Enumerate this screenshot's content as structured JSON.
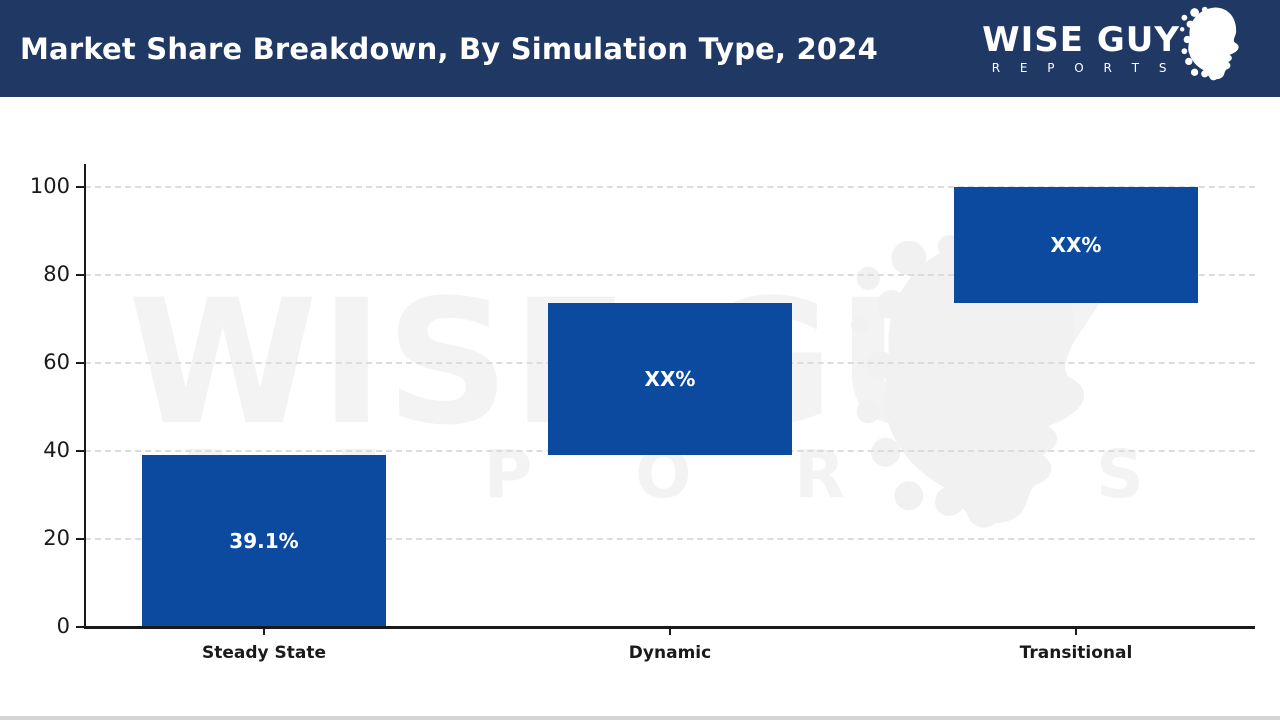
{
  "header": {
    "title": "Market Share Breakdown, By Simulation Type, 2024",
    "logo_line1": "WISE GUY",
    "logo_line2": "R E P O R T S"
  },
  "watermark": {
    "line1": "WISE GUY",
    "line2": "R E P O R T S"
  },
  "colors": {
    "header_bg": "#1F3864",
    "bar": "#0B4A9F",
    "bar_label": "#FFFFFF",
    "axis": "#1A1A1A",
    "gridline": "#DCDCDC",
    "watermark": "#F3F3F3"
  },
  "chart_data": {
    "type": "bar",
    "subtype": "waterfall-segments",
    "title": "Market Share Breakdown, By Simulation Type, 2024",
    "categories": [
      "Steady State",
      "Dynamic",
      "Transitional"
    ],
    "segments": [
      {
        "category": "Steady State",
        "start": 0,
        "end": 39.1,
        "label": "39.1%"
      },
      {
        "category": "Dynamic",
        "start": 39.1,
        "end": 73.6,
        "label": "XX%"
      },
      {
        "category": "Transitional",
        "start": 73.6,
        "end": 100,
        "label": "XX%"
      }
    ],
    "xlabel": "",
    "ylabel": "",
    "ylim": [
      0,
      100
    ],
    "yticks": [
      0,
      20,
      40,
      60,
      80,
      100
    ],
    "grid": "horizontal-dashed",
    "legend_position": "none"
  }
}
